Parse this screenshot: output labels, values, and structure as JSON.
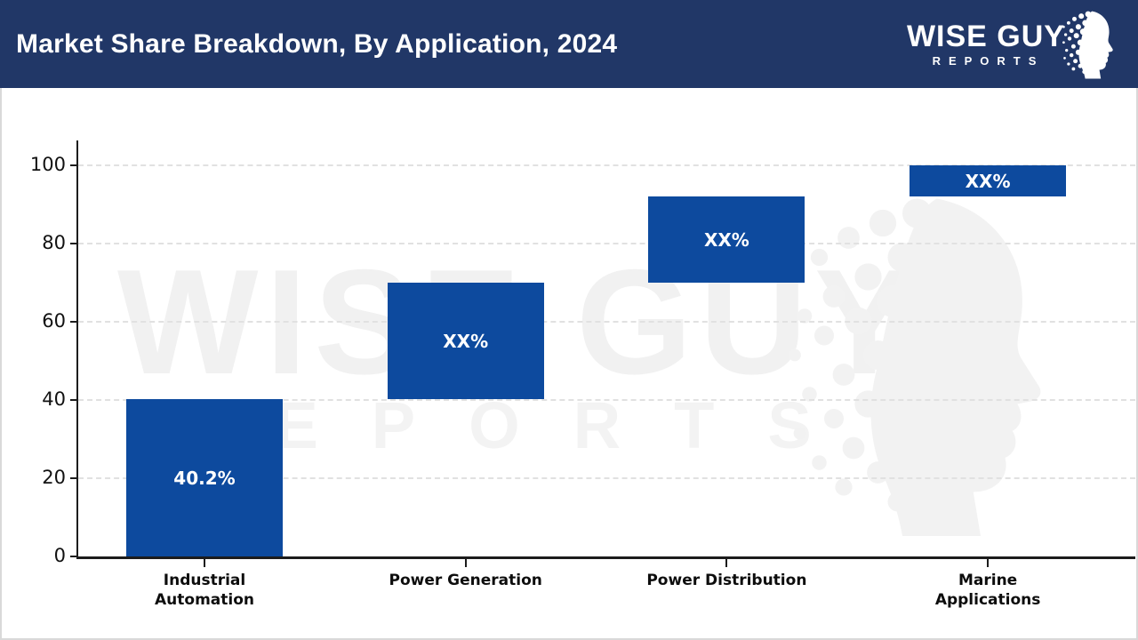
{
  "page": {
    "background": "#ffffff",
    "border_color": "#d9d9d9"
  },
  "header": {
    "background": "#213767",
    "title": "Market Share Breakdown, By Application, 2024",
    "logo": {
      "wordmark": "WISE GUY",
      "subtext": "REPORTS"
    }
  },
  "watermark": {
    "wordmark": "WISE GUY",
    "subtext": "REPORTS"
  },
  "chart_data": {
    "type": "bar",
    "subtype": "waterfall",
    "title": "Market Share Breakdown, By Application, 2024",
    "unit": "%",
    "categories": [
      "Industrial Automation",
      "Power Generation",
      "Power Distribution",
      "Marine Applications"
    ],
    "ylim": [
      0,
      100
    ],
    "yticks": [
      0,
      20,
      40,
      60,
      80,
      100
    ],
    "grid": "horizontal-dashed",
    "legend": "none",
    "bar_color": "#0d4a9e",
    "bar_label_color": "#ffffff",
    "axis_color": "#1c1c1c",
    "bars": [
      {
        "category_lines": [
          "Industrial",
          "Automation"
        ],
        "label": "40.2%",
        "start": 0,
        "end": 40.2
      },
      {
        "category_lines": [
          "Power Generation"
        ],
        "label": "XX%",
        "start": 40.2,
        "end": 70
      },
      {
        "category_lines": [
          "Power Distribution"
        ],
        "label": "XX%",
        "start": 70,
        "end": 92
      },
      {
        "category_lines": [
          "Marine",
          "Applications"
        ],
        "label": "XX%",
        "start": 92,
        "end": 100
      }
    ]
  }
}
